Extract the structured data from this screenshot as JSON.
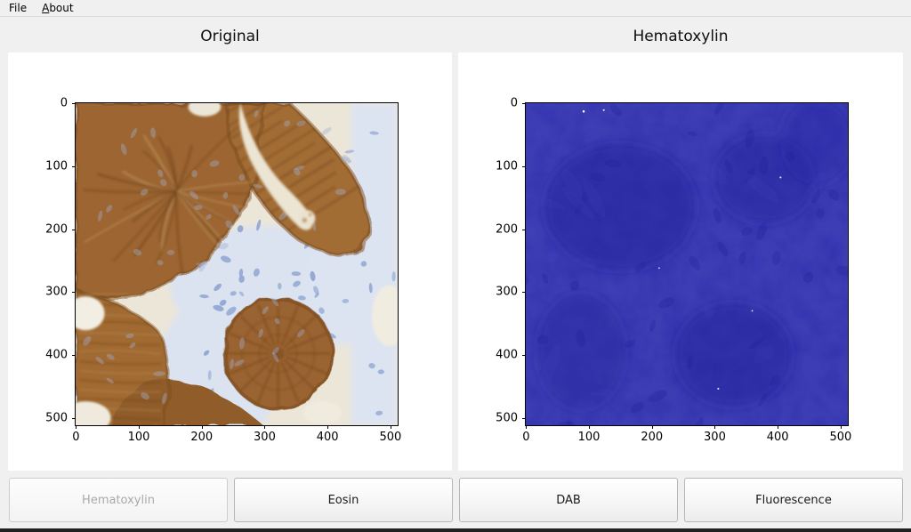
{
  "menubar": {
    "items": [
      {
        "label": "File",
        "underline_index": -1
      },
      {
        "label": "About",
        "underline_index": 0
      }
    ]
  },
  "panels": {
    "left": {
      "title": "Original"
    },
    "right": {
      "title": "Hematoxylin"
    }
  },
  "plot": {
    "data_size": 512,
    "x_ticks": [
      0,
      100,
      200,
      300,
      400,
      500
    ],
    "y_ticks": [
      0,
      100,
      200,
      300,
      400,
      500
    ]
  },
  "buttons": [
    {
      "label": "Hematoxylin",
      "enabled": false
    },
    {
      "label": "Eosin",
      "enabled": true
    },
    {
      "label": "DAB",
      "enabled": true
    },
    {
      "label": "Fluorescence",
      "enabled": true
    }
  ],
  "images": {
    "original": {
      "label": "IHC-stained tissue micrograph (DAB brown + hematoxylin blue)",
      "colors": {
        "dab_brown": "#9c6531",
        "dark_brown": "#6e4016",
        "stroma_blue": "#dbe2f0",
        "nuclei_blue": "#8ba2d0",
        "background_cream": "#ece6d8"
      }
    },
    "hematoxylin": {
      "label": "Hematoxylin channel image (deep blue)",
      "colors": {
        "base_blue": "#3333af",
        "shadow_blue": "#22229b",
        "speck_white": "#ffffff"
      }
    }
  },
  "window": {
    "background": "#f0f0f0",
    "panel": "#ffffff",
    "bottom_bar": "#202020"
  }
}
